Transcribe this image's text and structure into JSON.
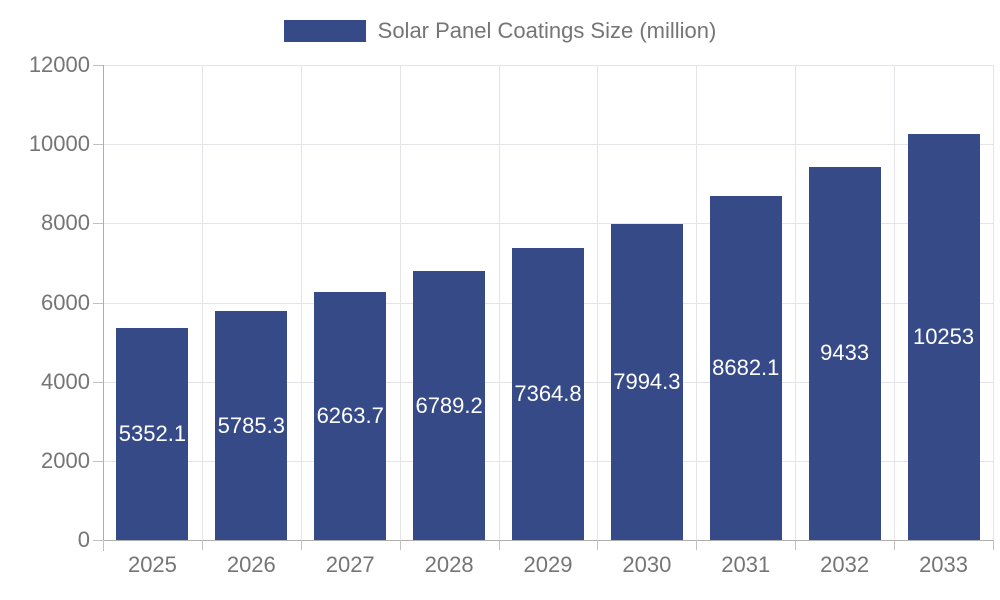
{
  "legend": {
    "label": "Solar Panel Coatings Size (million)"
  },
  "colors": {
    "bar": "#364a87",
    "value_label": "#ffffff",
    "axis_text": "#757575",
    "axis_line": "#aeaeae",
    "tick_line": "#c2c2c2",
    "gridline": "#e3e3e8",
    "background": "#ffffff"
  },
  "chart_data": {
    "type": "bar",
    "title": "Solar Panel Coatings Size (million)",
    "categories": [
      "2025",
      "2026",
      "2027",
      "2028",
      "2029",
      "2030",
      "2031",
      "2032",
      "2033"
    ],
    "values": [
      5352.1,
      5785.3,
      6263.7,
      6789.2,
      7364.8,
      7994.3,
      8682.1,
      9433,
      10253
    ],
    "value_labels": [
      "5352.1",
      "5785.3",
      "6263.7",
      "6789.2",
      "7364.8",
      "7994.3",
      "8682.1",
      "9433",
      "10253"
    ],
    "ytick_labels": [
      "0",
      "2000",
      "4000",
      "6000",
      "8000",
      "10000",
      "12000"
    ],
    "yticks": [
      0,
      2000,
      4000,
      6000,
      8000,
      10000,
      12000
    ],
    "ylim": [
      0,
      12000
    ],
    "xlabel": "",
    "ylabel": "",
    "grid": true,
    "legend_position": "top",
    "value_labels_inside_bars": true,
    "value_label_alignment": "center"
  }
}
